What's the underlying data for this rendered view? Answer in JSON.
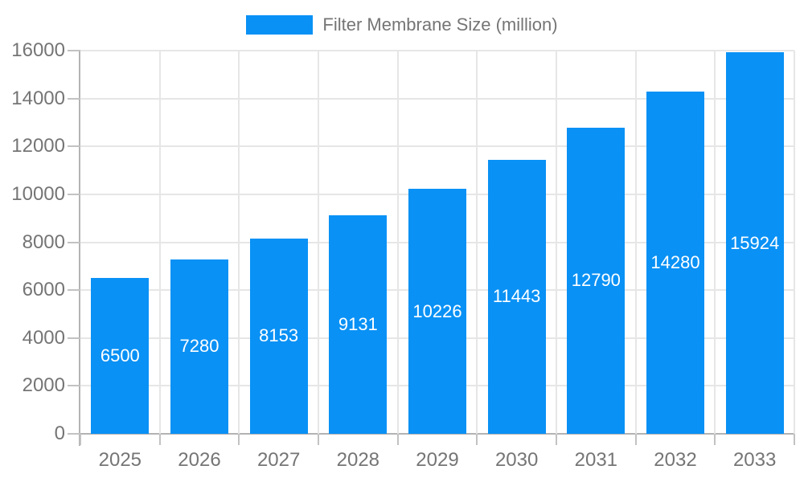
{
  "chart_data": {
    "type": "bar",
    "title": "Filter Membrane Size (million)",
    "legend_entries": [
      "Filter Membrane Size (million)"
    ],
    "legend_position": "top-center",
    "categories": [
      "2025",
      "2026",
      "2027",
      "2028",
      "2029",
      "2030",
      "2031",
      "2032",
      "2033"
    ],
    "series": [
      {
        "name": "Filter Membrane Size (million)",
        "values": [
          6500,
          7280,
          8153,
          9131,
          10226,
          11443,
          12790,
          14280,
          15924
        ]
      }
    ],
    "bar_value_labels": [
      6500,
      7280,
      8153,
      9131,
      10226,
      11443,
      12790,
      14280,
      15924
    ],
    "xlabel": "",
    "ylabel": "",
    "ylim": [
      0,
      16000
    ],
    "yticks": [
      0,
      2000,
      4000,
      6000,
      8000,
      10000,
      12000,
      14000,
      16000
    ],
    "grid": true,
    "colors": {
      "bar": "#0991f5",
      "bar_label": "#ffffff",
      "axis_text": "#757575",
      "axis_line": "#b3b3b3",
      "grid": "#e6e6e6",
      "tick": "#c2c2c2",
      "background": "#ffffff"
    }
  }
}
